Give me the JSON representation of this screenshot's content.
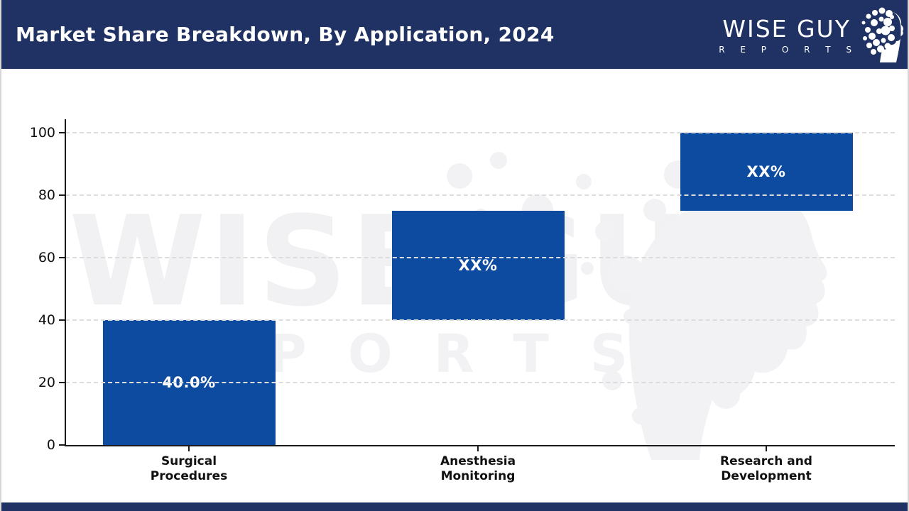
{
  "header": {
    "title": "Market Share Breakdown, By Application, 2024",
    "logo": {
      "name": "WISE GUY",
      "subtitle": "R E P O R T S"
    }
  },
  "watermark": {
    "line1": "WISE GUY",
    "line2": "REPORTS"
  },
  "theme": {
    "header_bg": "#203263",
    "footer_bg": "#203263",
    "bar_color": "#0c4b9f",
    "grid_color": "#dcdcdc",
    "axis_color": "#1a1a1a",
    "bar_label_color": "#ffffff",
    "watermark_color": "#f1f1f3"
  },
  "chart_data": {
    "type": "bar",
    "subtype": "floating-waterfall",
    "title": "Market Share Breakdown, By Application, 2024",
    "categories": [
      [
        "Surgical",
        "Procedures"
      ],
      [
        "Anesthesia",
        "Monitoring"
      ],
      [
        "Research and",
        "Development"
      ]
    ],
    "bars": [
      {
        "category": "Surgical Procedures",
        "start": 0,
        "end": 40,
        "label": "40.0%"
      },
      {
        "category": "Anesthesia Monitoring",
        "start": 40,
        "end": 75,
        "label": "XX%"
      },
      {
        "category": "Research and Development",
        "start": 75,
        "end": 100,
        "label": "XX%"
      }
    ],
    "yticks": [
      0,
      20,
      40,
      60,
      80,
      100
    ],
    "ylim": [
      0,
      104
    ],
    "xlabel": "",
    "ylabel": "",
    "grid": "horizontal-dashed",
    "legend": "none"
  }
}
